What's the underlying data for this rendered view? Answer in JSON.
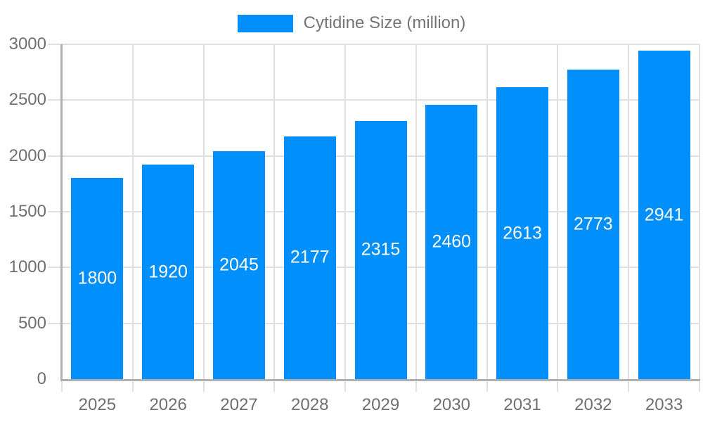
{
  "chart_data": {
    "type": "bar",
    "title": "Cytidine Size (million)",
    "legend": {
      "label": "Cytidine Size (million)",
      "position": "top"
    },
    "categories": [
      "2025",
      "2026",
      "2027",
      "2028",
      "2029",
      "2030",
      "2031",
      "2032",
      "2033"
    ],
    "series": [
      {
        "name": "Cytidine Size (million)",
        "values": [
          1800,
          1920,
          2045,
          2177,
          2315,
          2460,
          2613,
          2773,
          2941
        ]
      }
    ],
    "bar_value_labels": [
      1800,
      1920,
      2045,
      2177,
      2315,
      2460,
      2613,
      2773,
      2941
    ],
    "xlabel": "",
    "ylabel": "",
    "ylim": [
      0,
      3000
    ],
    "yticks": [
      0,
      500,
      1000,
      1500,
      2000,
      2500,
      3000
    ],
    "grid": true,
    "colors": {
      "bar": "#008FFB",
      "bar_label": "#FFFFFF",
      "axis_text": "#707070",
      "legend_text": "#757575",
      "gridline": "#E0E0E0",
      "axis_line": "#B0B0B0",
      "background": "#FFFFFF"
    }
  }
}
